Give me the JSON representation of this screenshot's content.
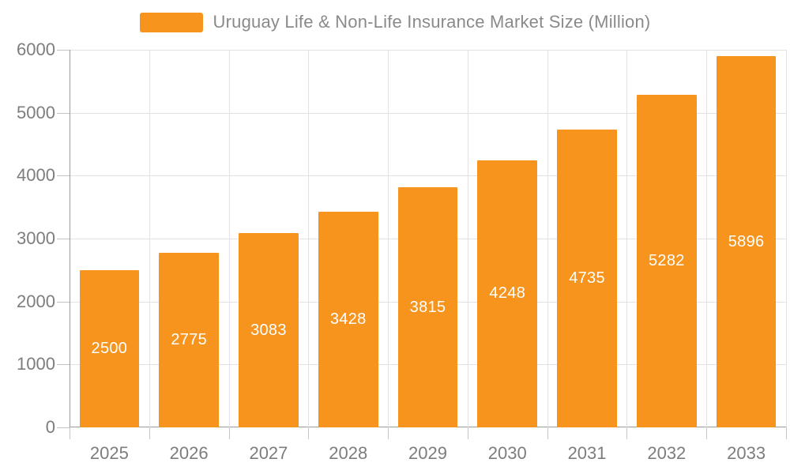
{
  "chart_data": {
    "type": "bar",
    "title": "Uruguay Life & Non-Life Insurance Market Size (Million)",
    "categories": [
      "2025",
      "2026",
      "2027",
      "2028",
      "2029",
      "2030",
      "2031",
      "2032",
      "2033"
    ],
    "values": [
      2500,
      2775,
      3083,
      3428,
      3815,
      4248,
      4735,
      5282,
      5896
    ],
    "xlabel": "",
    "ylabel": "",
    "ylim": [
      0,
      6000
    ],
    "yticks": [
      0,
      1000,
      2000,
      3000,
      4000,
      5000,
      6000
    ],
    "grid": "both",
    "legend_position": "top-center",
    "bar_color": "#F7941E",
    "value_label_color": "#FFFFFF",
    "grid_color": "#E2E2E2",
    "axis_color": "#9B9B9B",
    "tick_color": "#C4C4C4",
    "tick_label_color": "#7D7D7D",
    "legend_text_color": "#8A8A8A"
  }
}
